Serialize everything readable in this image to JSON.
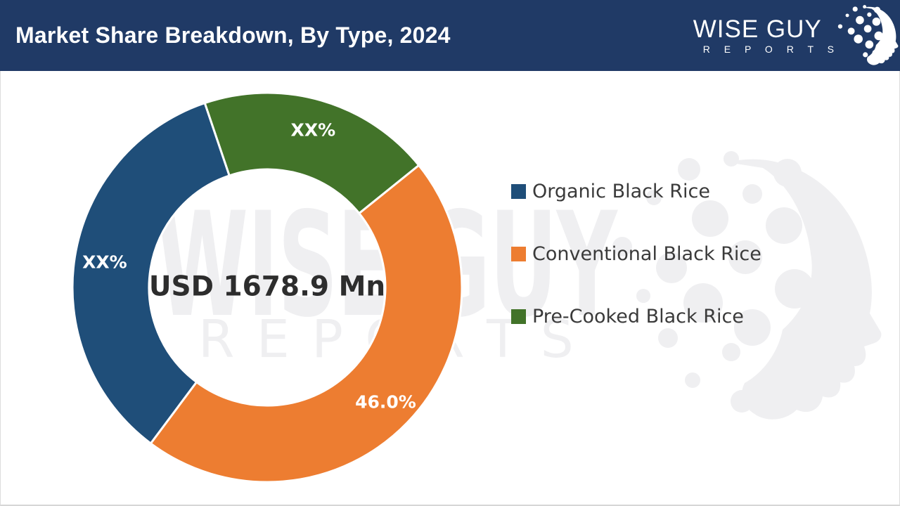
{
  "header": {
    "title": "Market Share Breakdown, By Type, 2024",
    "brand": {
      "name": "WISE GUY",
      "subtitle": "R E P O R T S"
    }
  },
  "watermark": {
    "wordmark": "WISE GUY",
    "subtitle": "R E P O R T S"
  },
  "chart_data": {
    "type": "pie",
    "subtype": "donut",
    "title": "Market Share Breakdown, By Type, 2024",
    "center_label": "USD 1678.9 Mn",
    "start_angle_deg": -18.7,
    "draw_order": [
      2,
      1,
      0
    ],
    "legend_position": "right",
    "slices": [
      {
        "name": "Organic Black Rice",
        "value_pct": 34.6,
        "label": "XX%",
        "color": "#1F4E79"
      },
      {
        "name": "Conventional Black Rice",
        "value_pct": 46.0,
        "label": "46.0%",
        "color": "#ED7D31"
      },
      {
        "name": "Pre-Cooked Black Rice",
        "value_pct": 19.4,
        "label": "XX%",
        "color": "#427329"
      }
    ],
    "colors": {
      "header_bg": "#203A66",
      "center_text": "#2D2D2D",
      "legend_text": "#3A3A3A",
      "watermark": "#EFEFF1",
      "slice_separator": "#FFFFFF"
    }
  }
}
